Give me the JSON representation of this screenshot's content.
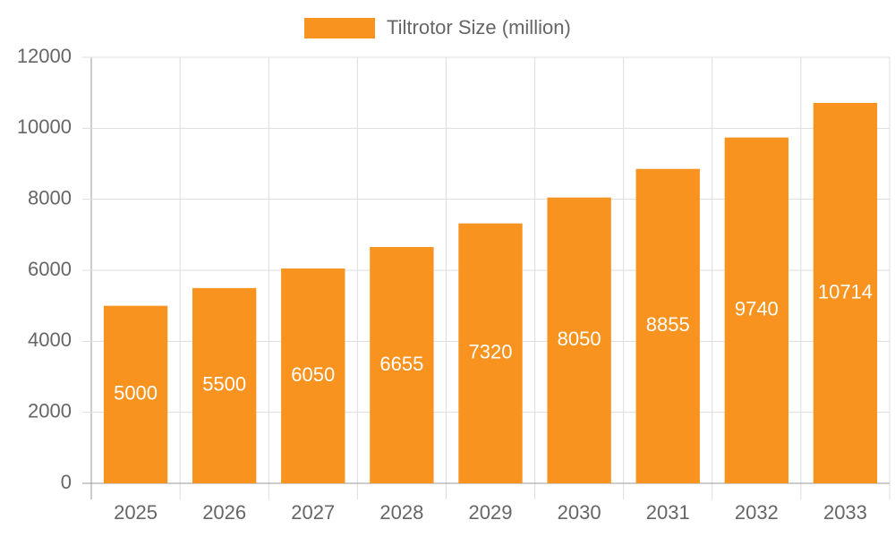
{
  "chart_data": {
    "type": "bar",
    "categories": [
      "2025",
      "2026",
      "2027",
      "2028",
      "2029",
      "2030",
      "2031",
      "2032",
      "2033"
    ],
    "series": [
      {
        "name": "Tiltrotor Size (million)",
        "color": "#f7931e",
        "values": [
          5000,
          5500,
          6050,
          6655,
          7320,
          8050,
          8855,
          9740,
          10714
        ]
      }
    ],
    "ylim": [
      0,
      12000
    ],
    "yticks": [
      0,
      2000,
      4000,
      6000,
      8000,
      10000,
      12000
    ],
    "grid": true,
    "legend": "top",
    "data_label_color": "#ffffff"
  }
}
